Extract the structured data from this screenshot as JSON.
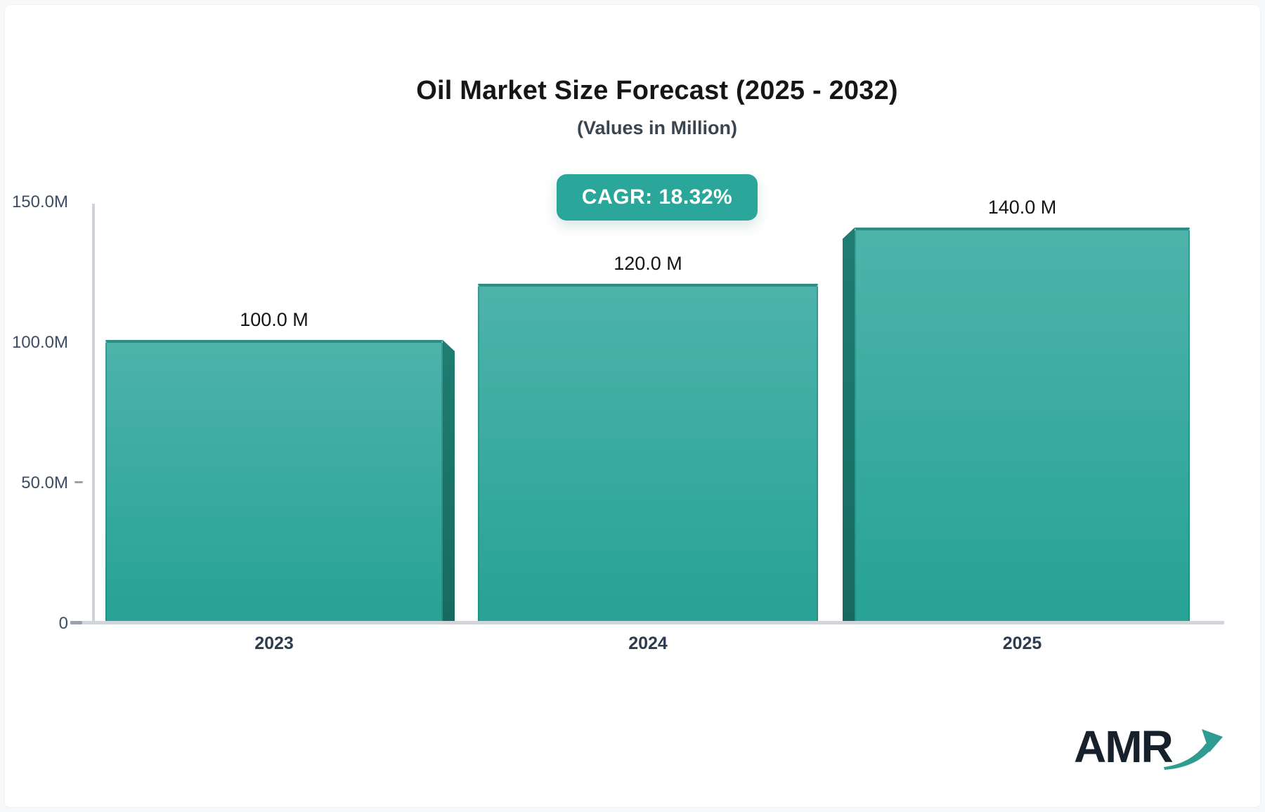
{
  "header": {
    "title": "Oil Market Size Forecast (2025 - 2032)",
    "subtitle": "(Values in Million)",
    "cagr_badge": "CAGR: 18.32%"
  },
  "chart_data": {
    "type": "bar",
    "title": "Oil Market Size Forecast (2025 - 2032)",
    "subtitle": "(Values in Million)",
    "unit": "Million",
    "cagr_percent": "18.32%",
    "categories": [
      "2023",
      "2024",
      "2025"
    ],
    "values": [
      100.0,
      120.0,
      140.0
    ],
    "value_labels": [
      "100.0 M",
      "120.0 M",
      "140.0 M"
    ],
    "ylim": [
      0,
      150
    ],
    "y_ticks": [
      {
        "label": "150.0M",
        "value": 150
      },
      {
        "label": "100.0M",
        "value": 100
      },
      {
        "label": "50.0M",
        "value": 50
      },
      {
        "label": "0",
        "value": 0
      }
    ],
    "grid": false,
    "legend": false,
    "bar_style": {
      "gradient_top": "#4db3ab",
      "gradient_bottom": "#27a295",
      "edge": "#2b8d83",
      "side_3d_top": "#1f7d72",
      "side_3d_bottom": "#176a60"
    }
  },
  "branding": {
    "logo_text": "AMR",
    "logo_color": "#16212b",
    "arrow_color": "#2e9c90",
    "arrow_icon": "growth-arrow-icon"
  },
  "colors": {
    "accent_teal": "#2aa79a",
    "axis_line": "#d2d5da",
    "tick_label": "#3d4d63",
    "category_label": "#2e3c50",
    "page_background": "#f7f8fa",
    "card_background": "#ffffff"
  }
}
